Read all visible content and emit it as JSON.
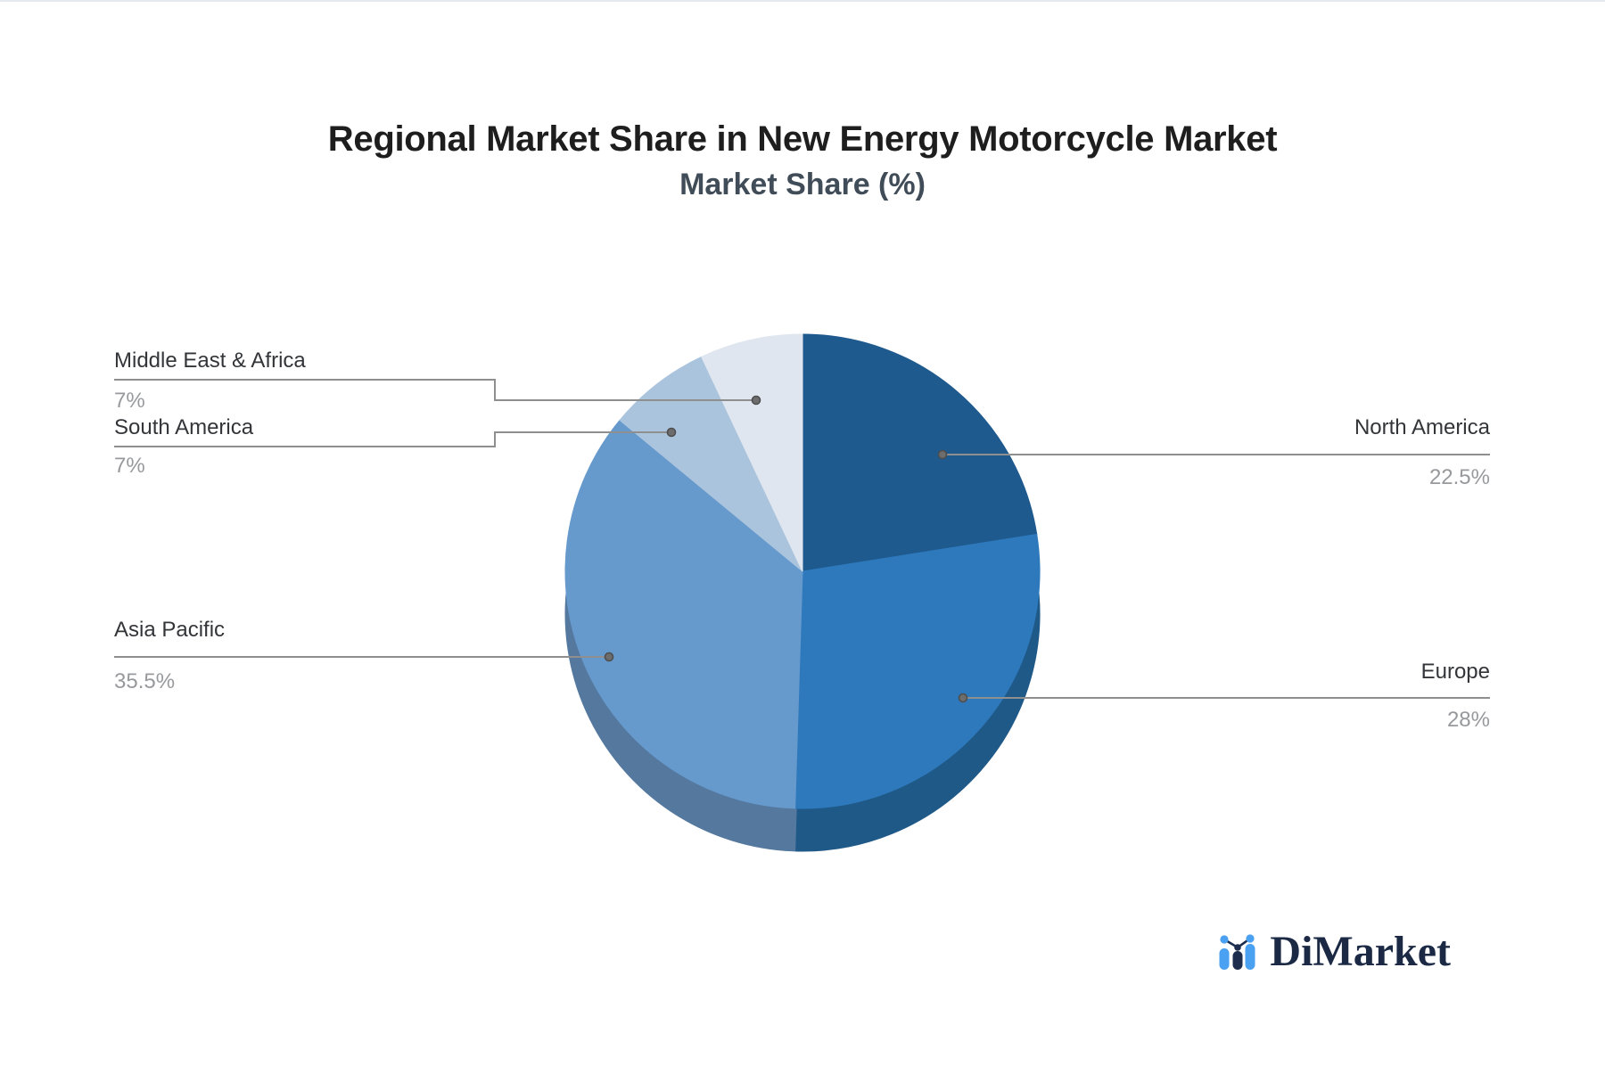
{
  "header": {
    "title": "Regional Market Share in New Energy Motorcycle Market",
    "subtitle": "Market Share (%)"
  },
  "chart_data": {
    "type": "pie",
    "style": "3d-depth-pie",
    "title": "Regional Market Share in New Energy Motorcycle Market",
    "subtitle": "Market Share (%)",
    "unit": "%",
    "start_angle_deg_clockwise_from_top": 0,
    "legend_position": "callout-labels",
    "segments": [
      {
        "id": "north-america",
        "label": "North America",
        "value": 22.5,
        "display": "22.5%",
        "color": "#1f5a8e",
        "side_color": "#17466e",
        "callout_side": "right"
      },
      {
        "id": "europe",
        "label": "Europe",
        "value": 28,
        "display": "28%",
        "color": "#2e79bc",
        "side_color": "#1f5988",
        "callout_side": "right"
      },
      {
        "id": "asia-pacific",
        "label": "Asia Pacific",
        "value": 35.5,
        "display": "35.5%",
        "color": "#6699cc",
        "side_color": "#54789e",
        "callout_side": "left"
      },
      {
        "id": "south-america",
        "label": "South America",
        "value": 7,
        "display": "7%",
        "color": "#abc4de",
        "side_color": "#8aa6c2",
        "callout_side": "left"
      },
      {
        "id": "middle-east-africa",
        "label": "Middle East & Africa",
        "value": 7,
        "display": "7%",
        "color": "#dfe6ef",
        "side_color": "#b6c2d1",
        "callout_side": "left"
      }
    ],
    "colors": {
      "leader_line": "#8f8f8f",
      "marker_dot_fill": "#6d6d6d",
      "marker_dot_ring": "#4e4e4e",
      "label_text": "#333539",
      "percent_text": "#97999c"
    }
  },
  "branding": {
    "name": "DiMarket",
    "icon": "bar-line-chart-icon",
    "text_color": "#1b2944",
    "icon_blue": "#4aa1f2",
    "icon_navy": "#1d2d4d"
  }
}
